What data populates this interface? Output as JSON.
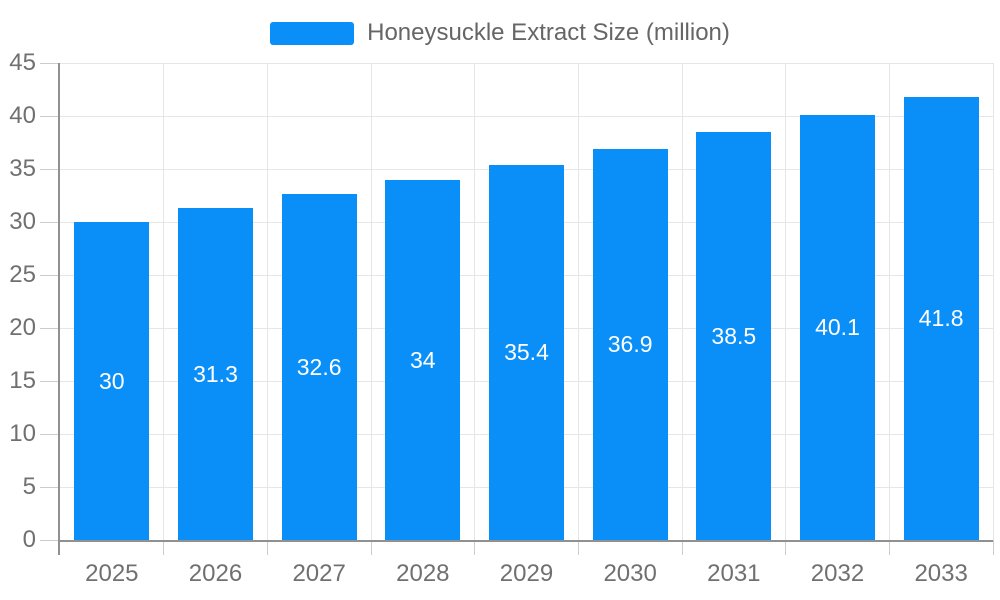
{
  "chart_data": {
    "type": "bar",
    "title": "Honeysuckle Extract Size (million)",
    "categories": [
      "2025",
      "2026",
      "2027",
      "2028",
      "2029",
      "2030",
      "2031",
      "2032",
      "2033"
    ],
    "values": [
      30,
      31.3,
      32.6,
      34,
      35.4,
      36.9,
      38.5,
      40.1,
      41.8
    ],
    "value_labels": [
      "30",
      "31.3",
      "32.6",
      "34",
      "35.4",
      "36.9",
      "38.5",
      "40.1",
      "41.8"
    ],
    "xlabel": "",
    "ylabel": "",
    "ylim": [
      0,
      45
    ],
    "ytick_step": 5,
    "yticks": [
      0,
      5,
      10,
      15,
      20,
      25,
      30,
      35,
      40,
      45
    ],
    "grid": true,
    "legend_position": "top",
    "colors": {
      "bar": "#0A8FF9",
      "grid": "#E6E6E6",
      "tick": "#CCCCCC",
      "axis": "#909090",
      "axis_label": "#707070",
      "value_label": "#FFFFFF",
      "legend_text": "#666666",
      "background": "#FFFFFF"
    }
  }
}
